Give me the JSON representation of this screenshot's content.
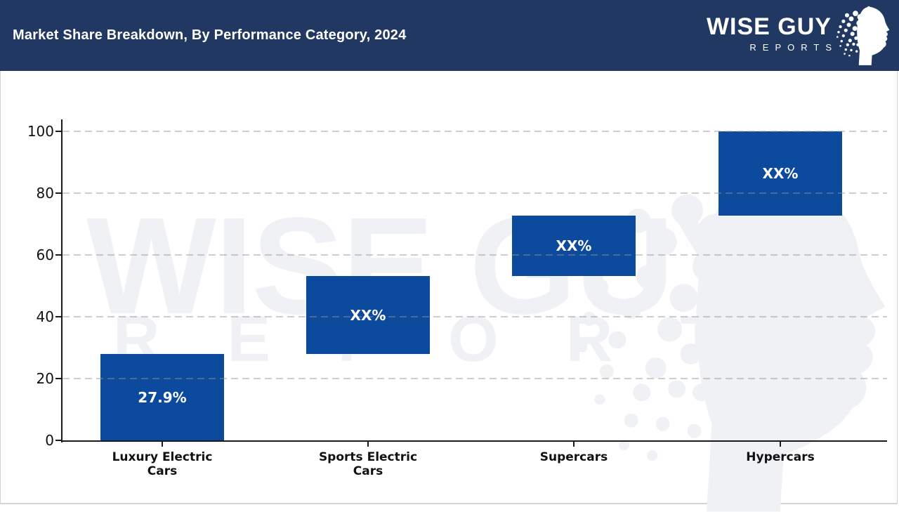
{
  "header": {
    "title": "Market Share Breakdown, By Performance Category, 2024",
    "logo": {
      "line1": "WISE GUY",
      "line2": "REPORTS"
    }
  },
  "watermark": {
    "line1": "WISE GUY",
    "line2": "REPORTS"
  },
  "colors": {
    "header_bg": "#213863",
    "bar_blue": "#0c4a9e",
    "watermark_gray": "#eff1f4",
    "grid_gray": "#d9d9d9",
    "axis_black": "#1a1a1a",
    "title_white": "#ffffff"
  },
  "chart_data": {
    "type": "bar",
    "subtype": "floating-waterfall",
    "title": "Market Share Breakdown, By Performance Category, 2024",
    "xlabel": "",
    "ylabel": "",
    "ylim": [
      0,
      100
    ],
    "yticks": [
      0,
      20,
      40,
      60,
      80,
      100
    ],
    "grid": "horizontal-dashed",
    "legend": "none",
    "categories": [
      "Luxury Electric Cars",
      "Sports Electric Cars",
      "Supercars",
      "Hypercars"
    ],
    "category_label_lines": [
      [
        "Luxury Electric",
        "Cars"
      ],
      [
        "Sports Electric",
        "Cars"
      ],
      [
        "Supercars"
      ],
      [
        "Hypercars"
      ]
    ],
    "segments": [
      {
        "category": "Luxury Electric Cars",
        "start": 0,
        "end": 27.9,
        "label": "27.9%"
      },
      {
        "category": "Sports Electric Cars",
        "start": 27.9,
        "end": 53.2,
        "label": "XX%"
      },
      {
        "category": "Supercars",
        "start": 53.2,
        "end": 72.7,
        "label": "XX%"
      },
      {
        "category": "Hypercars",
        "start": 72.7,
        "end": 100,
        "label": "XX%"
      }
    ],
    "bar_color": "#0c4a9e"
  }
}
